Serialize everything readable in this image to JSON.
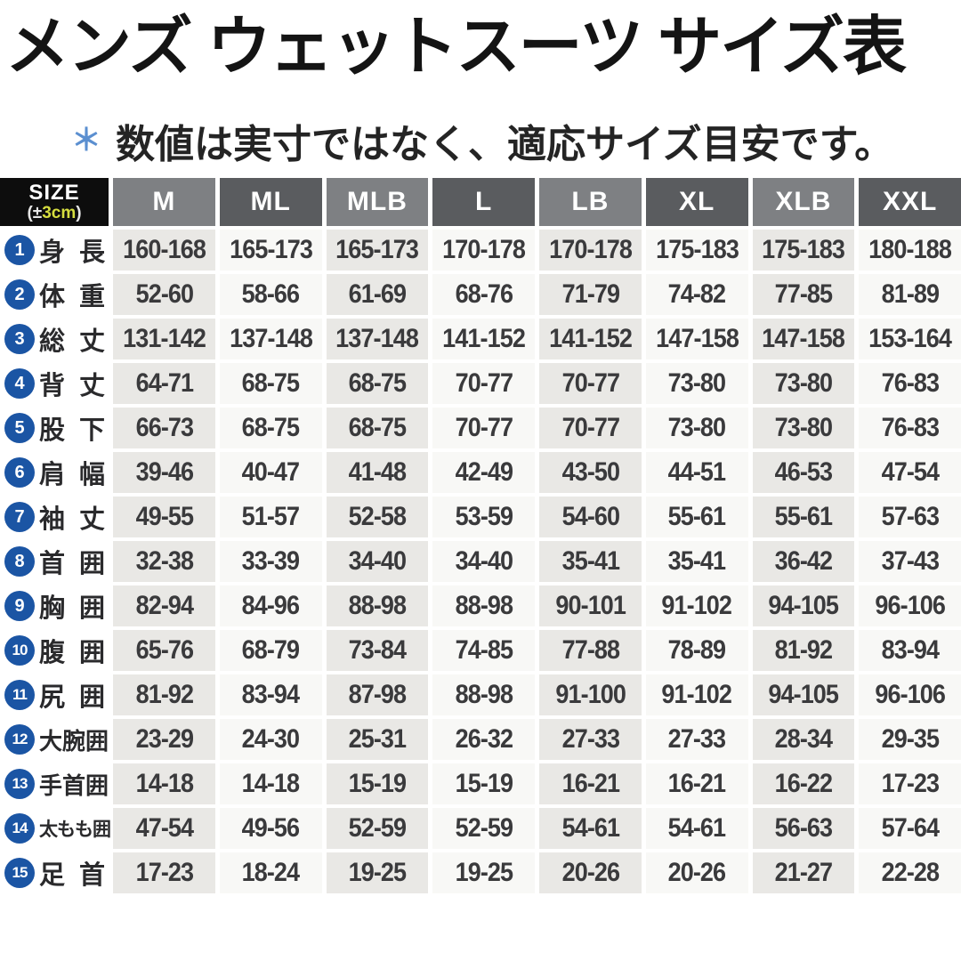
{
  "chart_data": {
    "type": "table",
    "title": "メンズ ウェットスーツ サイズ表",
    "note_marker": "＊",
    "note": "数値は実寸ではなく、適応サイズ目安です。",
    "corner": {
      "size_label": "SIZE",
      "tolerance_open": "(±",
      "tolerance_value": "3cm",
      "tolerance_close": ")"
    },
    "columns": [
      "M",
      "ML",
      "MLB",
      "L",
      "LB",
      "XL",
      "XLB",
      "XXL"
    ],
    "shaded_columns": [
      "M",
      "MLB",
      "LB",
      "XLB"
    ],
    "rows": [
      {
        "num": "1",
        "label": "身長",
        "values": [
          "160-168",
          "165-173",
          "165-173",
          "170-178",
          "170-178",
          "175-183",
          "175-183",
          "180-188"
        ]
      },
      {
        "num": "2",
        "label": "体重",
        "values": [
          "52-60",
          "58-66",
          "61-69",
          "68-76",
          "71-79",
          "74-82",
          "77-85",
          "81-89"
        ]
      },
      {
        "num": "3",
        "label": "総丈",
        "values": [
          "131-142",
          "137-148",
          "137-148",
          "141-152",
          "141-152",
          "147-158",
          "147-158",
          "153-164"
        ]
      },
      {
        "num": "4",
        "label": "背丈",
        "values": [
          "64-71",
          "68-75",
          "68-75",
          "70-77",
          "70-77",
          "73-80",
          "73-80",
          "76-83"
        ]
      },
      {
        "num": "5",
        "label": "股下",
        "values": [
          "66-73",
          "68-75",
          "68-75",
          "70-77",
          "70-77",
          "73-80",
          "73-80",
          "76-83"
        ]
      },
      {
        "num": "6",
        "label": "肩幅",
        "values": [
          "39-46",
          "40-47",
          "41-48",
          "42-49",
          "43-50",
          "44-51",
          "46-53",
          "47-54"
        ]
      },
      {
        "num": "7",
        "label": "袖丈",
        "values": [
          "49-55",
          "51-57",
          "52-58",
          "53-59",
          "54-60",
          "55-61",
          "55-61",
          "57-63"
        ]
      },
      {
        "num": "8",
        "label": "首囲",
        "values": [
          "32-38",
          "33-39",
          "34-40",
          "34-40",
          "35-41",
          "35-41",
          "36-42",
          "37-43"
        ]
      },
      {
        "num": "9",
        "label": "胸囲",
        "values": [
          "82-94",
          "84-96",
          "88-98",
          "88-98",
          "90-101",
          "91-102",
          "94-105",
          "96-106"
        ]
      },
      {
        "num": "10",
        "label": "腹囲",
        "values": [
          "65-76",
          "68-79",
          "73-84",
          "74-85",
          "77-88",
          "78-89",
          "81-92",
          "83-94"
        ]
      },
      {
        "num": "11",
        "label": "尻囲",
        "values": [
          "81-92",
          "83-94",
          "87-98",
          "88-98",
          "91-100",
          "91-102",
          "94-105",
          "96-106"
        ]
      },
      {
        "num": "12",
        "label": "大腕囲",
        "values": [
          "23-29",
          "24-30",
          "25-31",
          "26-32",
          "27-33",
          "27-33",
          "28-34",
          "29-35"
        ]
      },
      {
        "num": "13",
        "label": "手首囲",
        "values": [
          "14-18",
          "14-18",
          "15-19",
          "15-19",
          "16-21",
          "16-21",
          "16-22",
          "17-23"
        ]
      },
      {
        "num": "14",
        "label": "太もも囲",
        "values": [
          "47-54",
          "49-56",
          "52-59",
          "52-59",
          "54-61",
          "54-61",
          "56-63",
          "57-64"
        ]
      },
      {
        "num": "15",
        "label": "足首",
        "values": [
          "17-23",
          "18-24",
          "19-25",
          "19-25",
          "20-26",
          "20-26",
          "21-27",
          "22-28"
        ]
      }
    ]
  },
  "colors": {
    "badge_blue": "#1b55a4",
    "note_blue": "#5b8fd0",
    "header_light_gray": "#7e8083",
    "header_dark_gray": "#5a5c5f",
    "corner_black": "#0d0d0d",
    "tolerance_yellow": "#d5dd3f",
    "cell_shaded": "#e9e8e5",
    "cell_light": "#f8f8f6"
  }
}
